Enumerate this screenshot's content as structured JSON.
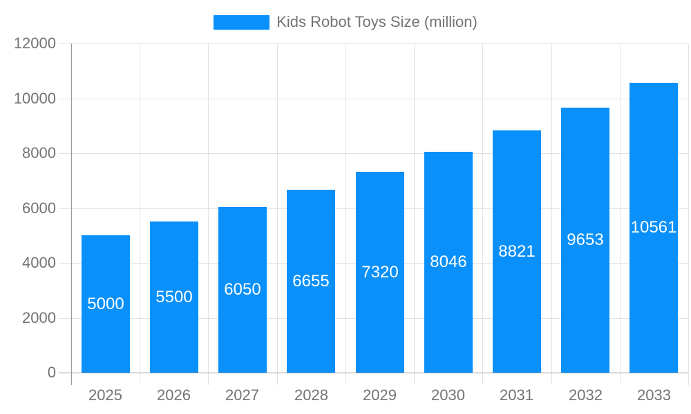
{
  "legend": {
    "label": "Kids Robot Toys Size (million)"
  },
  "chart_data": {
    "type": "bar",
    "title": "",
    "categories": [
      "2025",
      "2026",
      "2027",
      "2028",
      "2029",
      "2030",
      "2031",
      "2032",
      "2033"
    ],
    "series": [
      {
        "name": "Kids Robot Toys Size (million)",
        "values": [
          5000,
          5500,
          6050,
          6655,
          7320,
          8046,
          8821,
          9653,
          10561
        ]
      }
    ],
    "bar_value_labels": [
      "5000",
      "5500",
      "6050",
      "6655",
      "7320",
      "8046",
      "8821",
      "9653",
      "10561"
    ],
    "xlabel": "",
    "ylabel": "",
    "ylim": [
      0,
      12000
    ],
    "yticks": [
      0,
      2000,
      4000,
      6000,
      8000,
      10000,
      12000
    ],
    "ytick_labels": [
      "0",
      "2000",
      "4000",
      "6000",
      "8000",
      "10000",
      "12000"
    ],
    "grid": true,
    "legend_position": "top-center",
    "bar_labels_visible": true,
    "colors": {
      "bar": "#0990fa",
      "bar_label": "#ffffff",
      "axis_text": "#737373",
      "axis_line": "#999999",
      "gridline": "#e2e2e2",
      "background": "#ffffff"
    }
  }
}
